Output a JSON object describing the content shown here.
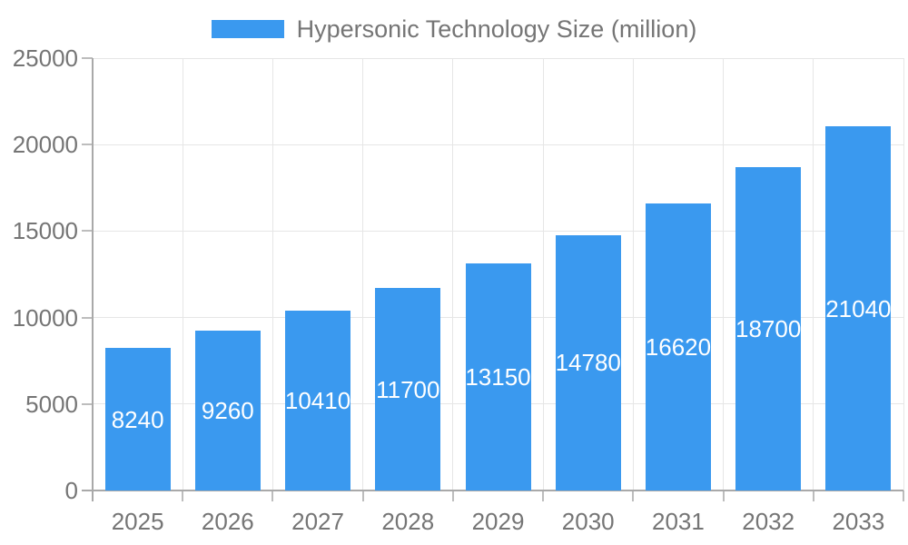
{
  "chart_data": {
    "type": "bar",
    "title": "",
    "legend": "Hypersonic Technology Size (million)",
    "categories": [
      "2025",
      "2026",
      "2027",
      "2028",
      "2029",
      "2030",
      "2031",
      "2032",
      "2033"
    ],
    "values": [
      8240,
      9260,
      10410,
      11700,
      13150,
      14780,
      16620,
      18700,
      21040
    ],
    "xlabel": "",
    "ylabel": "",
    "ylim": [
      0,
      25000
    ],
    "ytick_step": 5000,
    "yticks": [
      0,
      5000,
      10000,
      15000,
      20000,
      25000
    ],
    "grid": true,
    "legend_position": "top",
    "colors": {
      "bar": "#3A99EF",
      "bar_value_label": "#ffffff",
      "axis_label": "#757575",
      "gridline": "#E6E6E6",
      "axis_line": "#A9A9A9",
      "tick_mark": "#BDBDBD",
      "background": "#ffffff"
    }
  }
}
